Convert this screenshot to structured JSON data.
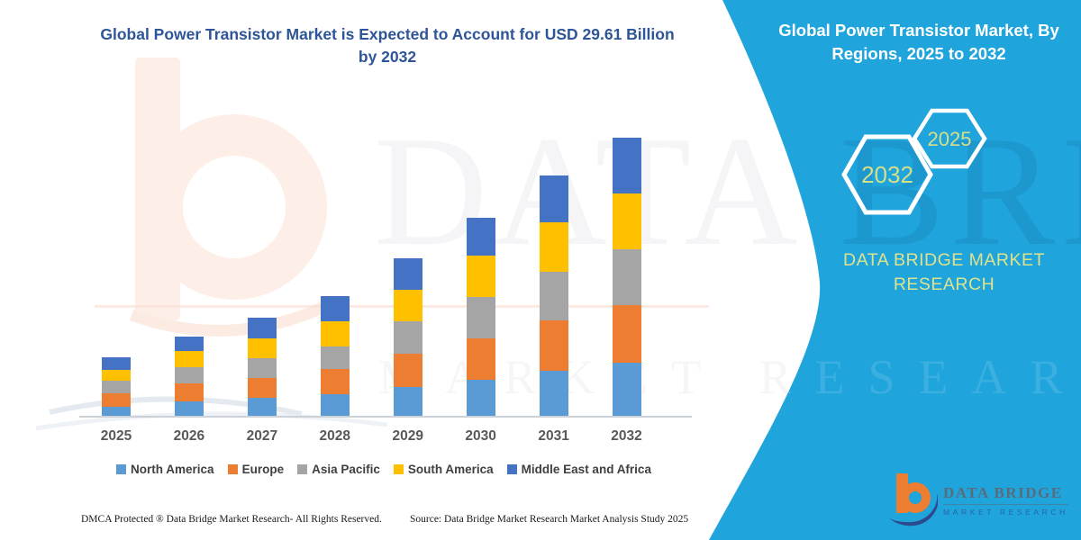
{
  "chart": {
    "title_line1": "Global Power Transistor Market is Expected to Account for USD 29.61 Billion",
    "title_line2": "by 2032"
  },
  "chart_data": {
    "type": "bar",
    "stacked": true,
    "title": "Global Power Transistor Market is Expected to Account for USD 29.61 Billion by 2032",
    "unit": "USD Billion",
    "xlabel": "",
    "ylabel": "",
    "ylim": [
      0,
      30
    ],
    "grid": false,
    "legend_position": "bottom",
    "annotation": "USD 29.61 Billion by 2032",
    "categories": [
      "2025",
      "2026",
      "2027",
      "2028",
      "2029",
      "2030",
      "2031",
      "2032"
    ],
    "series": [
      {
        "name": "North America",
        "color": "#5B9BD5",
        "values": [
          1.1,
          1.6,
          2.0,
          2.4,
          3.2,
          3.9,
          4.9,
          5.7
        ]
      },
      {
        "name": "Europe",
        "color": "#ED7D31",
        "values": [
          1.4,
          1.9,
          2.1,
          2.7,
          3.5,
          4.4,
          5.3,
          6.1
        ]
      },
      {
        "name": "Asia Pacific",
        "color": "#A5A5A5",
        "values": [
          1.3,
          1.8,
          2.1,
          2.4,
          3.4,
          4.4,
          5.2,
          6.0
        ]
      },
      {
        "name": "South America",
        "color": "#FFC000",
        "values": [
          1.2,
          1.7,
          2.1,
          2.6,
          3.4,
          4.4,
          5.2,
          5.9
        ]
      },
      {
        "name": "Middle East and Africa",
        "color": "#4472C4",
        "values": [
          1.3,
          1.5,
          2.2,
          2.7,
          3.3,
          4.0,
          5.0,
          5.9
        ]
      }
    ],
    "totals_estimated": [
      6.3,
      8.5,
      10.5,
      12.8,
      16.8,
      21.1,
      25.6,
      29.61
    ]
  },
  "panel": {
    "bg_color": "#1fa4dc",
    "title_line1": "Global Power Transistor Market, By",
    "title_line2": "Regions, 2025 to 2032",
    "hexagons": [
      {
        "label": "2032"
      },
      {
        "label": "2025"
      }
    ],
    "brand_line1": "DATA BRIDGE MARKET",
    "brand_line2": "RESEARCH",
    "accent_text_color": "#d6df87"
  },
  "watermark": {
    "brand": "DATA BRIDGE",
    "sub": "MARKET RESEARCH"
  },
  "logo": {
    "name": "DATA BRIDGE",
    "sub": "MARKET RESEARCH"
  },
  "footer": {
    "dmca": "DMCA Protected ® Data Bridge Market Research-  All Rights Reserved.",
    "source": "Source: Data Bridge Market Research  Market Analysis Study 2025"
  }
}
